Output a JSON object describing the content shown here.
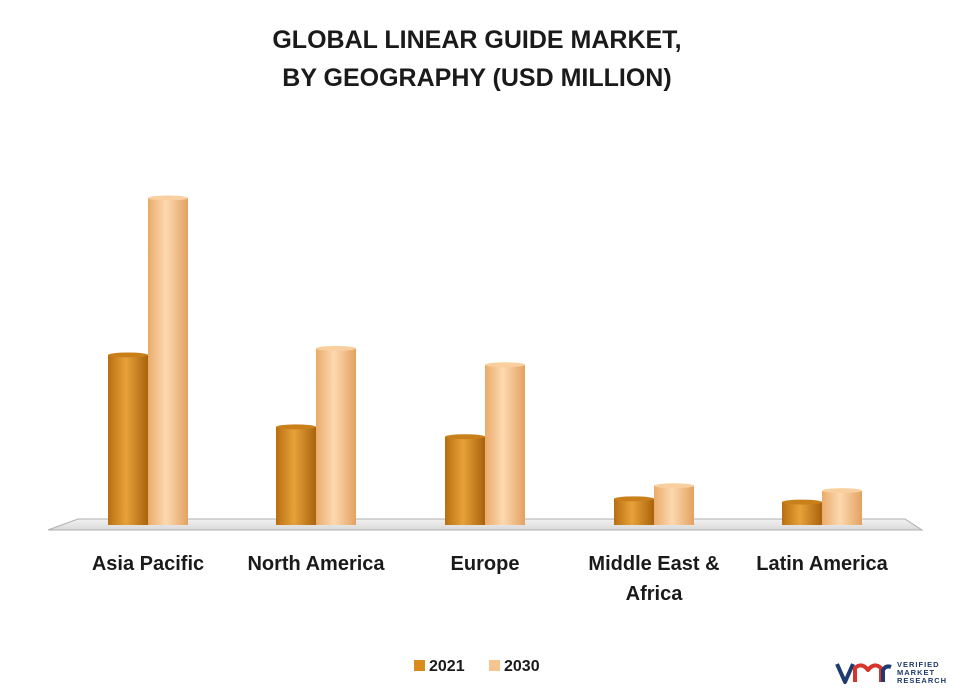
{
  "chart_data": {
    "type": "bar",
    "title_lines": [
      "GLOBAL LINEAR GUIDE MARKET,",
      "BY GEOGRAPHY (USD MILLION)"
    ],
    "categories": [
      [
        "Asia Pacific"
      ],
      [
        "North America"
      ],
      [
        "Europe"
      ],
      [
        "Middle East &",
        "Africa"
      ],
      [
        "Latin America"
      ]
    ],
    "series": [
      {
        "name": "2021",
        "values": [
          52,
          30,
          27,
          8,
          7
        ],
        "color": "#d98b1c"
      },
      {
        "name": "2030",
        "values": [
          100,
          54,
          49,
          12,
          10.5
        ],
        "color": "#f6c48e"
      }
    ],
    "ylim": [
      0,
      100
    ],
    "grid": false,
    "legend_position": "bottom-center"
  },
  "logo": {
    "line1": "VERIFIED",
    "line2": "MARKET",
    "line3": "RESEARCH",
    "color": "#1f3a6e"
  }
}
